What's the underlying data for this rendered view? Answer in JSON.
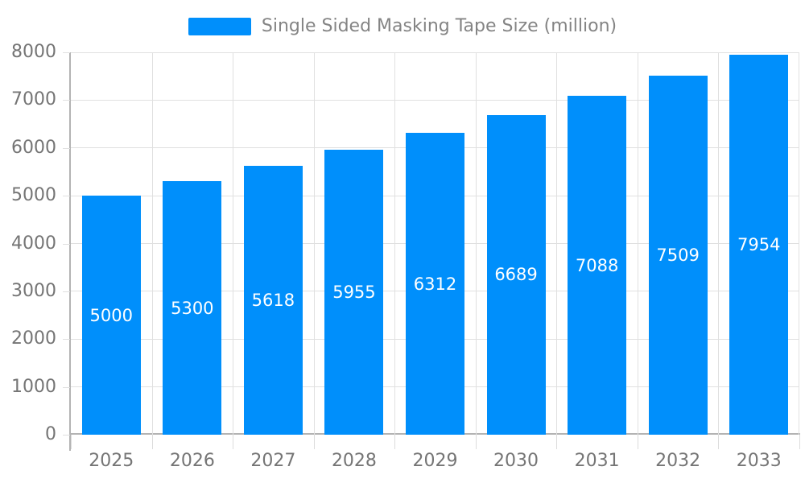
{
  "legend": {
    "label": "Single Sided Masking Tape Size (million)"
  },
  "chart_data": {
    "type": "bar",
    "title": "Single Sided Masking Tape Size (million)",
    "categories": [
      "2025",
      "2026",
      "2027",
      "2028",
      "2029",
      "2030",
      "2031",
      "2032",
      "2033"
    ],
    "series": [
      {
        "name": "Single Sided Masking Tape Size (million)",
        "values": [
          5000,
          5300,
          5618,
          5955,
          6312,
          6689,
          7088,
          7509,
          7954
        ]
      }
    ],
    "value_labels": [
      "5000",
      "5300",
      "5618",
      "5955",
      "6312",
      "6689",
      "7088",
      "7509",
      "7954"
    ],
    "xlabel": "",
    "ylabel": "",
    "ylim": [
      0,
      8000
    ],
    "y_tick_step": 1000,
    "y_tick_labels": [
      "0",
      "1000",
      "2000",
      "3000",
      "4000",
      "5000",
      "6000",
      "7000",
      "8000"
    ],
    "grid": true,
    "legend_position": "top",
    "colors": {
      "bar": "#008FFB",
      "value_label": "#ffffff",
      "axis_label": "#757575",
      "legend_text": "#848484",
      "gridline": "#e0e0e0",
      "axis_line": "#b3b3b3",
      "background": "#ffffff"
    }
  }
}
